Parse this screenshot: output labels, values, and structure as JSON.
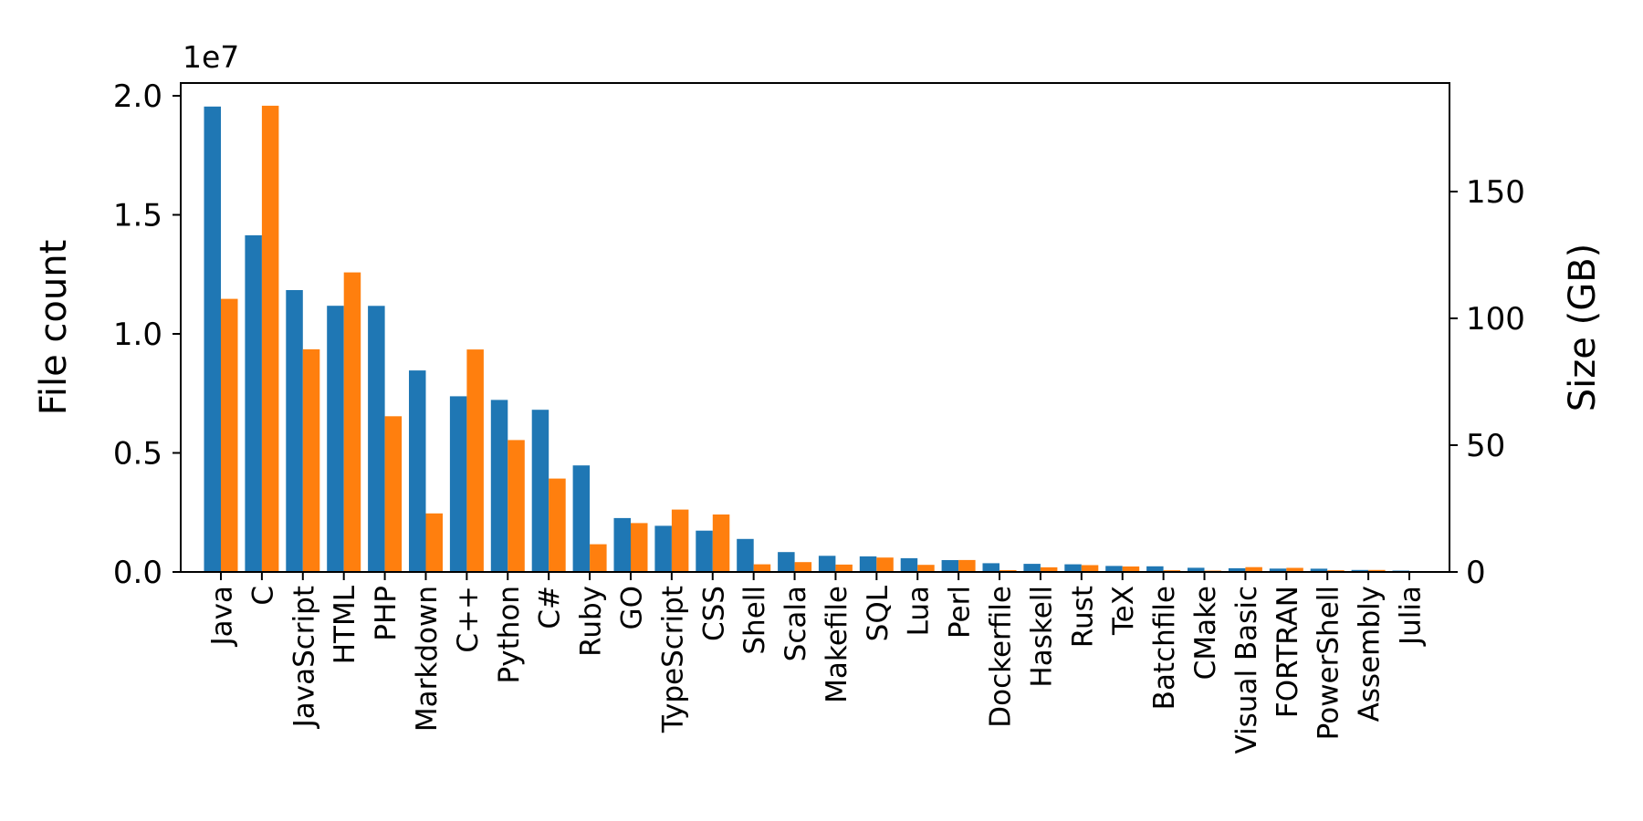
{
  "chart_data": {
    "type": "bar",
    "title": "",
    "grid": false,
    "legend": "none",
    "categories": [
      "Java",
      "C",
      "JavaScript",
      "HTML",
      "PHP",
      "Markdown",
      "C++",
      "Python",
      "C#",
      "Ruby",
      "GO",
      "TypeScript",
      "CSS",
      "Shell",
      "Scala",
      "Makefile",
      "SQL",
      "Lua",
      "Perl",
      "Dockerfile",
      "Haskell",
      "Rust",
      "TeX",
      "Batchfile",
      "CMake",
      "Visual Basic",
      "FORTRAN",
      "PowerShell",
      "Assembly",
      "Julia"
    ],
    "series": [
      {
        "name": "File count",
        "axis": "left",
        "color": "#1f77b4",
        "values": [
          19548190,
          14143113,
          11839883,
          11178557,
          11177610,
          8464626,
          7380520,
          7226626,
          6811652,
          4473331,
          2265436,
          1940406,
          1734406,
          1385648,
          835755,
          679430,
          656671,
          578554,
          497949,
          366505,
          340623,
          322431,
          251015,
          236945,
          175282,
          155652,
          142038,
          136846,
          82905,
          58317
        ]
      },
      {
        "name": "Size (GB)",
        "axis": "right",
        "color": "#ff7f0e",
        "values": [
          107.7,
          183.83,
          87.82,
          118.12,
          61.41,
          23.09,
          87.73,
          52.03,
          36.83,
          10.95,
          19.28,
          24.59,
          22.67,
          3.01,
          3.87,
          2.92,
          5.67,
          2.81,
          4.7,
          0.71,
          1.85,
          2.68,
          2.15,
          0.7,
          0.54,
          1.91,
          1.62,
          0.69,
          0.78,
          0.29
        ]
      }
    ],
    "left_axis": {
      "label": "File count",
      "color": "#1f77b4",
      "offset_text": "1e7",
      "range": [
        0,
        20536000
      ],
      "ticks": [
        {
          "label": "0.0",
          "value": 0
        },
        {
          "label": "0.5",
          "value": 5000000
        },
        {
          "label": "1.0",
          "value": 10000000
        },
        {
          "label": "1.5",
          "value": 15000000
        },
        {
          "label": "2.0",
          "value": 20000000
        }
      ]
    },
    "right_axis": {
      "label": "Size (GB)",
      "color": "#ff7f0e",
      "range": [
        0,
        192.8
      ],
      "ticks": [
        {
          "label": "0",
          "value": 0
        },
        {
          "label": "50",
          "value": 50
        },
        {
          "label": "100",
          "value": 100
        },
        {
          "label": "150",
          "value": 150
        }
      ]
    },
    "spine_color": "#000000",
    "background": "#ffffff"
  }
}
